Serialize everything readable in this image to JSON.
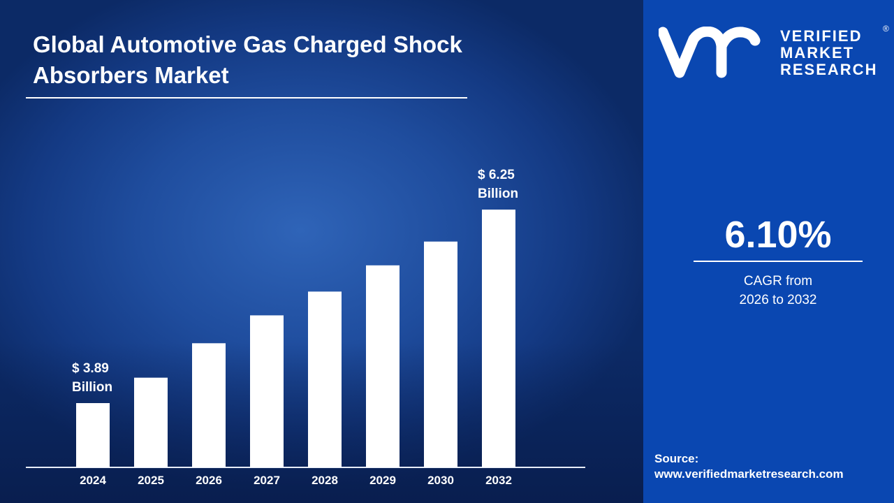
{
  "chart_data": {
    "type": "bar",
    "title": "Global Automotive Gas Charged Shock Absorbers Market",
    "categories": [
      "2024",
      "2025",
      "2026",
      "2027",
      "2028",
      "2029",
      "2030",
      "2032"
    ],
    "values": [
      3.89,
      4.2,
      4.62,
      4.96,
      5.25,
      5.57,
      5.86,
      6.25
    ],
    "unit": "USD Billion",
    "data_labels": {
      "first": [
        "$ 3.89",
        "Billion"
      ],
      "last": [
        "$ 6.25",
        "Billion"
      ]
    },
    "bar_color": "#ffffff",
    "grid": false,
    "legend": "none"
  },
  "brand": {
    "name_lines": [
      "VERIFIED",
      "MARKET",
      "RESEARCH"
    ],
    "registered": "®",
    "color": "#0a47b1"
  },
  "cagr": {
    "value": "6.10%",
    "label_lines": [
      "CAGR from",
      "2026 to 2032"
    ]
  },
  "source": {
    "label": "Source:",
    "url": "www.verifiedmarketresearch.com"
  }
}
